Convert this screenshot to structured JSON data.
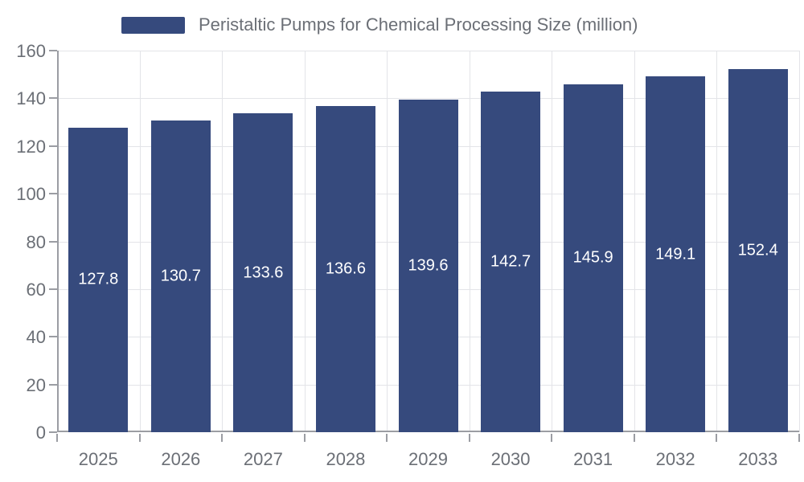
{
  "chart_data": {
    "type": "bar",
    "title": "Peristaltic Pumps for Chemical Processing Size (million)",
    "categories": [
      "2025",
      "2026",
      "2027",
      "2028",
      "2029",
      "2030",
      "2031",
      "2032",
      "2033"
    ],
    "values": [
      127.8,
      130.7,
      133.6,
      136.6,
      139.6,
      142.7,
      145.9,
      149.1,
      152.4
    ],
    "value_labels": [
      "127.8",
      "130.7",
      "133.6",
      "136.6",
      "139.6",
      "142.7",
      "145.9",
      "149.1",
      "152.4"
    ],
    "xlabel": "",
    "ylabel": "",
    "ylim": [
      0,
      160
    ],
    "yticks": [
      0,
      20,
      40,
      60,
      80,
      100,
      120,
      140,
      160
    ],
    "grid": true,
    "legend_position": "top",
    "bar_color": "#364A7D",
    "value_label_color": "#FFFFFF"
  },
  "legend": {
    "label": "Peristaltic Pumps for Chemical Processing Size (million)",
    "swatch_color": "#364A7D"
  },
  "colors": {
    "background": "#FFFFFF",
    "grid_line": "#E3E4E8",
    "axis_line": "#9B9DA3",
    "tick_label": "#6B6F76",
    "legend_text": "#6B6F76"
  }
}
